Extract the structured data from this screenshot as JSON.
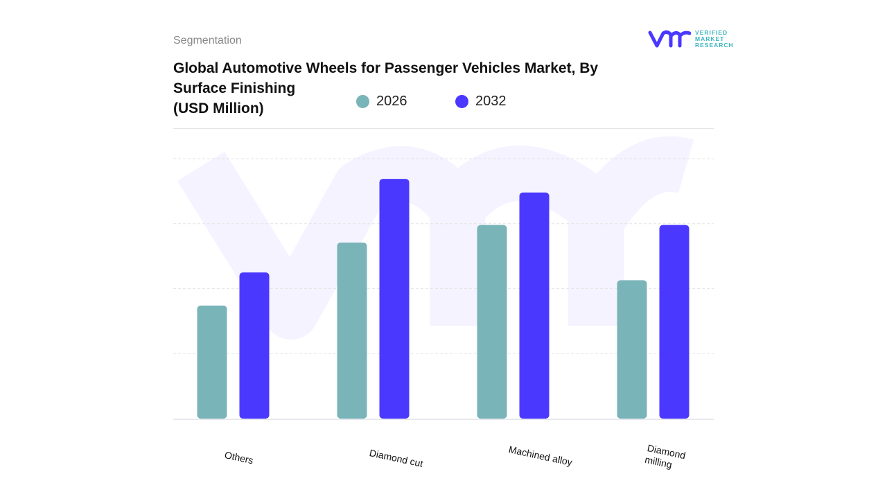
{
  "header": {
    "segment_label": "Segmentation",
    "title": "Global Automotive Wheels for Passenger Vehicles Market, By Surface Finishing\n(USD Million)"
  },
  "logo": {
    "line1": "VERIFIED",
    "line2": "MARKET",
    "line3": "RESEARCH",
    "mark": "vmr"
  },
  "chart_data": {
    "type": "bar",
    "title": "Global Automotive Wheels for Passenger Vehicles Market, By Surface Finishing (USD Million)",
    "categories": [
      "Others",
      "Diamond cut",
      "Machined alloy",
      "Diamond milling"
    ],
    "series": [
      {
        "name": "2026",
        "color": "#79b4b9",
        "values": [
          1.74,
          2.71,
          2.98,
          2.13
        ]
      },
      {
        "name": "2032",
        "color": "#4a38ff",
        "values": [
          2.25,
          3.69,
          3.48,
          2.98
        ]
      }
    ],
    "ylim": [
      0,
      4
    ],
    "grid": true,
    "legend": "top",
    "xlabel": "",
    "ylabel": ""
  }
}
